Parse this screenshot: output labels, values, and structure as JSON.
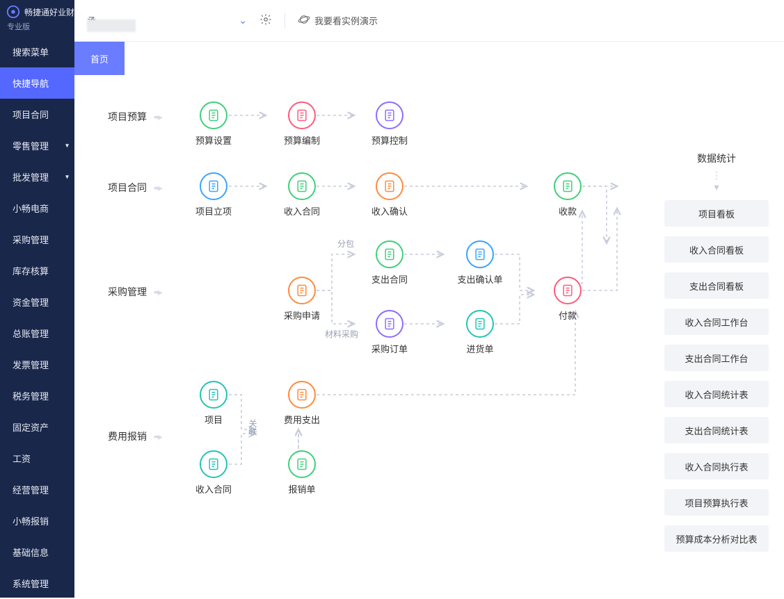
{
  "app": {
    "name": "畅捷通好业财",
    "edition": "专业版"
  },
  "topbar": {
    "org_prefix": "承",
    "demo": "我要看实例演示"
  },
  "tabs": {
    "home": "首页"
  },
  "sidebar": {
    "items": [
      {
        "label": "搜索菜单",
        "caret": false
      },
      {
        "label": "快捷导航",
        "caret": false,
        "active": true
      },
      {
        "label": "项目合同",
        "caret": false
      },
      {
        "label": "零售管理",
        "caret": true
      },
      {
        "label": "批发管理",
        "caret": true
      },
      {
        "label": "小畅电商",
        "caret": false
      },
      {
        "label": "采购管理",
        "caret": false
      },
      {
        "label": "库存核算",
        "caret": false
      },
      {
        "label": "资金管理",
        "caret": false
      },
      {
        "label": "总账管理",
        "caret": false
      },
      {
        "label": "发票管理",
        "caret": false
      },
      {
        "label": "税务管理",
        "caret": false
      },
      {
        "label": "固定资产",
        "caret": false
      },
      {
        "label": "工资",
        "caret": false
      },
      {
        "label": "经营管理",
        "caret": false
      },
      {
        "label": "小畅报销",
        "caret": false
      },
      {
        "label": "基础信息",
        "caret": false
      },
      {
        "label": "系统管理",
        "caret": false
      }
    ]
  },
  "sections": {
    "s1": "项目预算",
    "s2": "项目合同",
    "s3": "采购管理",
    "s4": "费用报销"
  },
  "nodes": {
    "budget_setup": {
      "label": "预算设置",
      "ring": "#3fcf7a",
      "glyph": "#3fcf7a"
    },
    "budget_edit": {
      "label": "预算编制",
      "ring": "#ff5a7a",
      "glyph": "#ff5a7a"
    },
    "budget_control": {
      "label": "预算控制",
      "ring": "#8c6cff",
      "glyph": "#8c6cff"
    },
    "project_init": {
      "label": "项目立项",
      "ring": "#3aa3ff",
      "glyph": "#3aa3ff"
    },
    "income_contract": {
      "label": "收入合同",
      "ring": "#3fcf7a",
      "glyph": "#3fcf7a"
    },
    "income_confirm": {
      "label": "收入确认",
      "ring": "#ff8a3d",
      "glyph": "#ff8a3d"
    },
    "receipt": {
      "label": "收款",
      "ring": "#3fcf7a",
      "glyph": "#3fcf7a"
    },
    "expend_contract": {
      "label": "支出合同",
      "ring": "#3fcf7a",
      "glyph": "#3fcf7a"
    },
    "expend_confirm": {
      "label": "支出确认单",
      "ring": "#3aa3ff",
      "glyph": "#3aa3ff"
    },
    "purchase_req": {
      "label": "采购申请",
      "ring": "#ff8a3d",
      "glyph": "#ff8a3d"
    },
    "purchase_order": {
      "label": "采购订单",
      "ring": "#8c6cff",
      "glyph": "#8c6cff"
    },
    "goods_in": {
      "label": "进货单",
      "ring": "#23c3b7",
      "glyph": "#23c3b7"
    },
    "payment": {
      "label": "付款",
      "ring": "#ff5a7a",
      "glyph": "#ff5a7a"
    },
    "project": {
      "label": "项目",
      "ring": "#23c3b7",
      "glyph": "#23c3b7"
    },
    "expense_out": {
      "label": "费用支出",
      "ring": "#ff8a3d",
      "glyph": "#ff8a3d"
    },
    "income_contract2": {
      "label": "收入合同",
      "ring": "#23c3b7",
      "glyph": "#23c3b7"
    },
    "reimburse": {
      "label": "报销单",
      "ring": "#3fcf7a",
      "glyph": "#3fcf7a"
    }
  },
  "path_labels": {
    "fenbao": "分包",
    "material": "材料采购",
    "guanlian": "关联"
  },
  "rcol": {
    "title": "数据统计",
    "items": [
      "项目看板",
      "收入合同看板",
      "支出合同看板",
      "收入合同工作台",
      "支出合同工作台",
      "收入合同统计表",
      "支出合同统计表",
      "收入合同执行表",
      "项目预算执行表",
      "预算成本分析对比表"
    ]
  },
  "colors": {
    "sidebar_bg": "#19274a",
    "accent": "#5468ff",
    "conn": "#d0d3e0"
  }
}
